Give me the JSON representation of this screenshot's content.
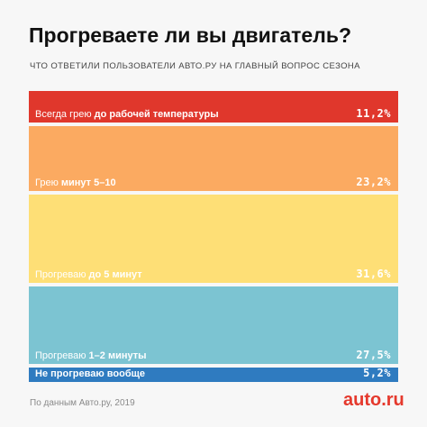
{
  "title": "Прогреваете ли вы двигатель?",
  "subtitle": "ЧТО ОТВЕТИЛИ ПОЛЬЗОВАТЕЛИ АВТО.РУ НА ГЛАВНЫЙ ВОПРОС СЕЗОНА",
  "footnote": "По данным Авто.ру, 2019",
  "logo": "auto.ru",
  "chart_data": {
    "type": "bar",
    "orientation": "stacked-column-proportional",
    "title": "Прогреваете ли вы двигатель?",
    "subtitle": "ЧТО ОТВЕТИЛИ ПОЛЬЗОВАТЕЛИ АВТО.РУ НА ГЛАВНЫЙ ВОПРОС СЕЗОНА",
    "categories": [
      "Всегда грею до рабочей температуры",
      "Грею минут 5–10",
      "Прогреваю до 5 минут",
      "Прогреваю 1–2 минуты",
      "Не прогреваю вообще"
    ],
    "values": [
      11.2,
      23.2,
      31.6,
      27.5,
      5.2
    ],
    "unit": "%",
    "bars": [
      {
        "label_plain": "Всегда грею ",
        "label_bold": "до рабочей температуры",
        "value_text": "11,2%",
        "value": 11.2,
        "color": "#e0372c"
      },
      {
        "label_plain": "Грею ",
        "label_bold": "минут 5–10",
        "value_text": "23,2%",
        "value": 23.2,
        "color": "#fbaa61"
      },
      {
        "label_plain": "Прогреваю ",
        "label_bold": "до 5 минут",
        "value_text": "31,6%",
        "value": 31.6,
        "color": "#fedf76"
      },
      {
        "label_plain": "Прогреваю ",
        "label_bold": "1–2 минуты",
        "value_text": "27,5%",
        "value": 27.5,
        "color": "#7cc4d2"
      },
      {
        "label_plain": "",
        "label_bold": "Не прогреваю вообще",
        "value_text": "5,2%",
        "value": 5.2,
        "color": "#2f7bc0"
      }
    ]
  }
}
